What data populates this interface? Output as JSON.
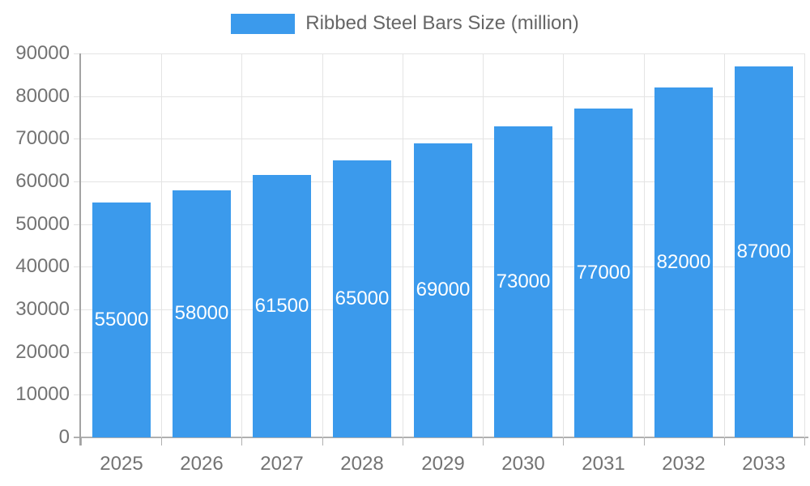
{
  "legend": {
    "label": "Ribbed Steel Bars Size (million)"
  },
  "chart_data": {
    "type": "bar",
    "title": "",
    "xlabel": "",
    "ylabel": "",
    "categories": [
      "2025",
      "2026",
      "2027",
      "2028",
      "2029",
      "2030",
      "2031",
      "2032",
      "2033"
    ],
    "series": [
      {
        "name": "Ribbed Steel Bars Size (million)",
        "values": [
          55000,
          58000,
          61500,
          65000,
          69000,
          73000,
          77000,
          82000,
          87000
        ],
        "bar_labels": [
          "55000",
          "58000",
          "61500",
          "65000",
          "69000",
          "73000",
          "77000",
          "82000",
          "87000"
        ]
      }
    ],
    "ylim": [
      0,
      90000
    ],
    "yticks": [
      0,
      10000,
      20000,
      30000,
      40000,
      50000,
      60000,
      70000,
      80000,
      90000
    ],
    "grid": true,
    "legend_position": "top",
    "bar_label_position": "inside-center",
    "colors": {
      "bar": "#3B9AEC",
      "grid_line": "#e4e4e4",
      "axis_line": "#a3a3a3",
      "tick_text": "#737373",
      "legend_text": "#666666",
      "bar_label_text": "#ffffff"
    }
  }
}
